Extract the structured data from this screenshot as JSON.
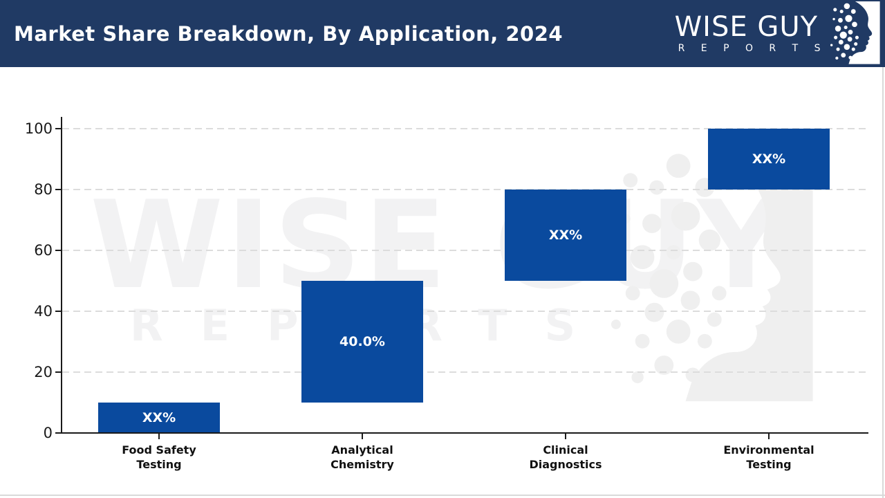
{
  "header": {
    "title": "Market Share Breakdown, By Application, 2024",
    "brand": {
      "name": "WISE GUY",
      "tagline": "R E P O R T S"
    }
  },
  "watermark": {
    "name": "WISE GUY",
    "tagline": "REPORTS"
  },
  "chart_data": {
    "type": "bar",
    "subtype": "waterfall",
    "title": "Market Share Breakdown, By Application, 2024",
    "categories": [
      "Food Safety\nTesting",
      "Analytical\nChemistry",
      "Clinical\nDiagnostics",
      "Environmental\nTesting"
    ],
    "segments": [
      {
        "category": "Food Safety Testing",
        "start": 0,
        "end": 10,
        "value_label": "XX%"
      },
      {
        "category": "Analytical Chemistry",
        "start": 10,
        "end": 50,
        "value_label": "40.0%"
      },
      {
        "category": "Clinical Diagnostics",
        "start": 50,
        "end": 80,
        "value_label": "XX%"
      },
      {
        "category": "Environmental Testing",
        "start": 80,
        "end": 100,
        "value_label": "XX%"
      }
    ],
    "xlabel": "",
    "ylabel": "",
    "ylim": [
      0,
      100
    ],
    "yticks": [
      0,
      20,
      40,
      60,
      80,
      100
    ],
    "grid": "horizontal-dashed",
    "legend": "none",
    "bar_color": "#0a4a9e",
    "grid_color": "#dcdcdc",
    "axis_color": "#1a1a1a",
    "header_bg": "#203a64",
    "watermark_color": "#f2f2f3"
  }
}
